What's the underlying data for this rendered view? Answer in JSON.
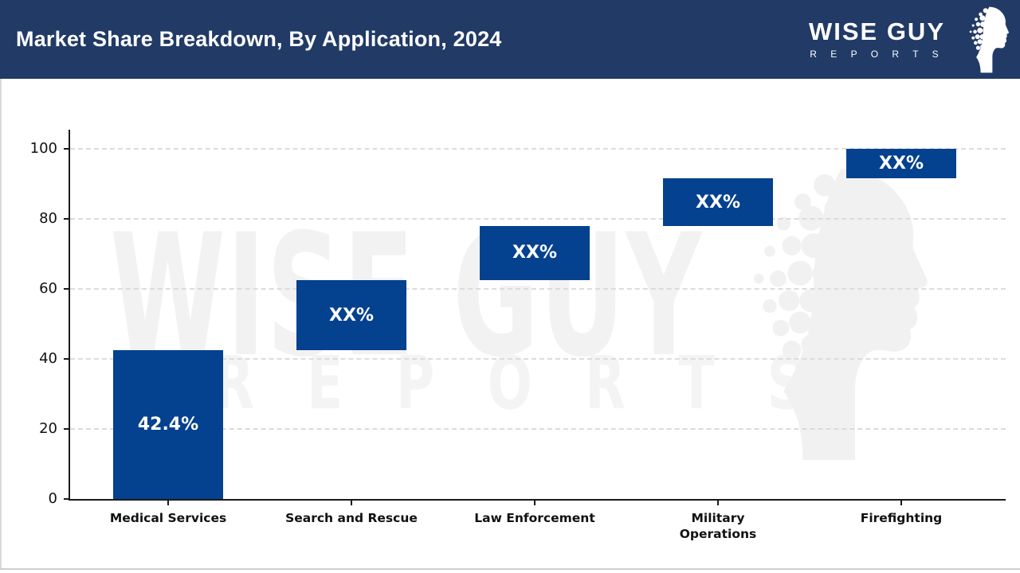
{
  "header": {
    "title": "Market Share Breakdown, By Application, 2024",
    "bg_color": "#213a66",
    "logo": {
      "name_line": "WISE GUY",
      "sub_line": "R E P O R T S"
    }
  },
  "watermark": {
    "line1": "WISE GUY",
    "line2": "R E P O R T S"
  },
  "chart_data": {
    "type": "bar",
    "subtype": "waterfall",
    "title": "Market Share Breakdown, By Application, 2024",
    "categories": [
      "Medical Services",
      "Search and Rescue",
      "Law Enforcement",
      "Military Operations",
      "Firefighting"
    ],
    "tick_labels": [
      "Medical Services",
      "Search and Rescue",
      "Law Enforcement",
      "Military\nOperations",
      "Firefighting"
    ],
    "segments": [
      {
        "category": "Medical Services",
        "start": 0,
        "end": 42.4,
        "label": "42.4%"
      },
      {
        "category": "Search and Rescue",
        "start": 42.4,
        "end": 62.5,
        "label": "XX%"
      },
      {
        "category": "Law Enforcement",
        "start": 62.5,
        "end": 78,
        "label": "XX%"
      },
      {
        "category": "Military Operations",
        "start": 78,
        "end": 91.5,
        "label": "XX%"
      },
      {
        "category": "Firefighting",
        "start": 91.5,
        "end": 100,
        "label": "XX%"
      }
    ],
    "ylim": [
      0,
      100
    ],
    "yticks": [
      0,
      20,
      40,
      60,
      80,
      100
    ],
    "grid": "horizontal-dashed",
    "legend": "none",
    "bar_color": "#04418f",
    "bar_label_color": "#ffffff",
    "axis_color": "#1a1a1a",
    "grid_color": "#dcdcdc"
  }
}
